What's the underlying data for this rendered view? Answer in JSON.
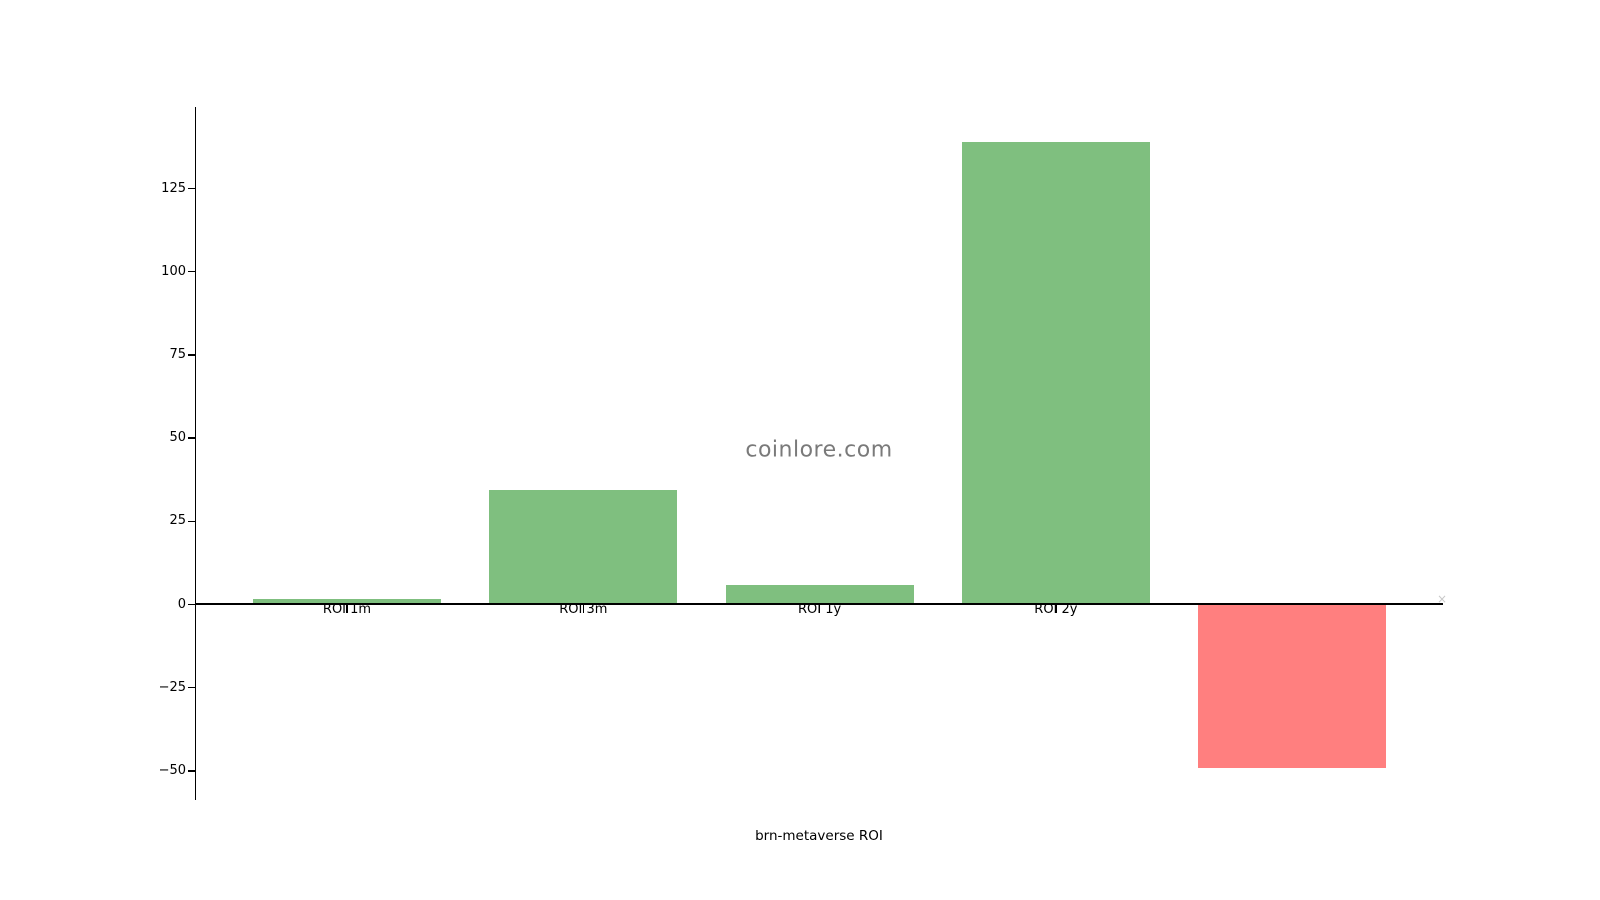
{
  "page": {
    "background": "#ffffff"
  },
  "chart_data": {
    "type": "bar",
    "title": "brn-metaverse ROI",
    "watermark": "coinlore.com",
    "categories": [
      "ROI 1m",
      "ROI 3m",
      "ROI 1y",
      "ROI 2y",
      ""
    ],
    "values": [
      1.8,
      34.5,
      6,
      139,
      -49
    ],
    "series_note": "single series; green = positive ROI, red = negative ROI; fifth bar has no x tick label",
    "yticks": [
      {
        "value": -50,
        "label": "−50"
      },
      {
        "value": -25,
        "label": "−25"
      },
      {
        "value": 0,
        "label": "0"
      },
      {
        "value": 25,
        "label": "25"
      },
      {
        "value": 50,
        "label": "50"
      },
      {
        "value": 75,
        "label": "75"
      },
      {
        "value": 100,
        "label": "100"
      },
      {
        "value": 125,
        "label": "125"
      }
    ],
    "ylim": [
      -58.5,
      149
    ],
    "xlabel": "",
    "ylabel": "",
    "grid": false,
    "legend": null,
    "axis_end_marker": "×",
    "colors": {
      "positive": "#7fbf7f",
      "negative": "#ff7f7f",
      "axis": "#000000",
      "tick_text": "#000000",
      "watermark": "#7a7a7a"
    }
  }
}
